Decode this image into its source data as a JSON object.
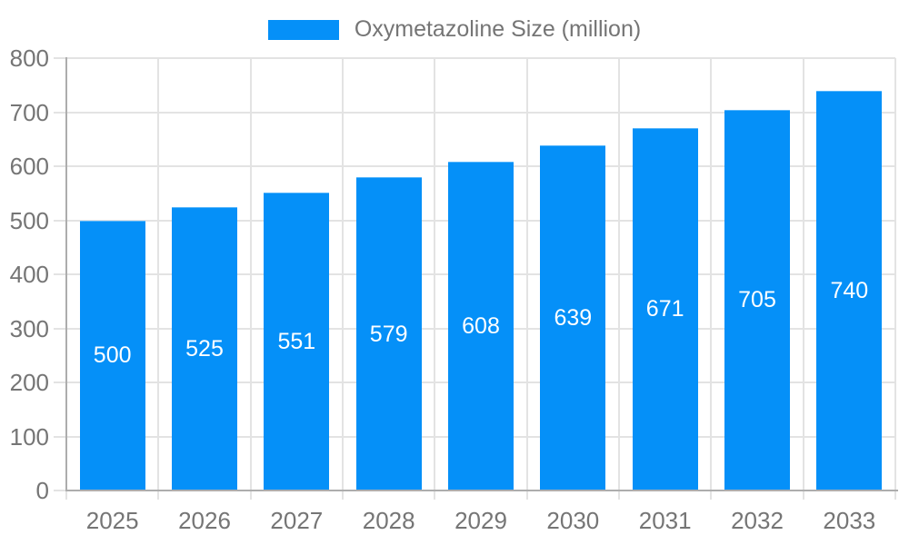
{
  "chart_data": {
    "type": "bar",
    "title": "",
    "legend": {
      "label": "Oxymetazoline Size (million)",
      "position": "top-center"
    },
    "categories": [
      "2025",
      "2026",
      "2027",
      "2028",
      "2029",
      "2030",
      "2031",
      "2032",
      "2033"
    ],
    "values": [
      500,
      525,
      551,
      579,
      608,
      639,
      671,
      705,
      740
    ],
    "xlabel": "",
    "ylabel": "",
    "ylim": [
      0,
      800
    ],
    "ytick_step": 100,
    "grid": true,
    "colors": {
      "bar": "#0590f8",
      "bar_top_edge": "#54b4fb",
      "value_label": "#ffffff",
      "axis_text": "#757575",
      "gridline": "#e3e3e3",
      "axis_line": "#adadad",
      "background": "#ffffff"
    }
  }
}
